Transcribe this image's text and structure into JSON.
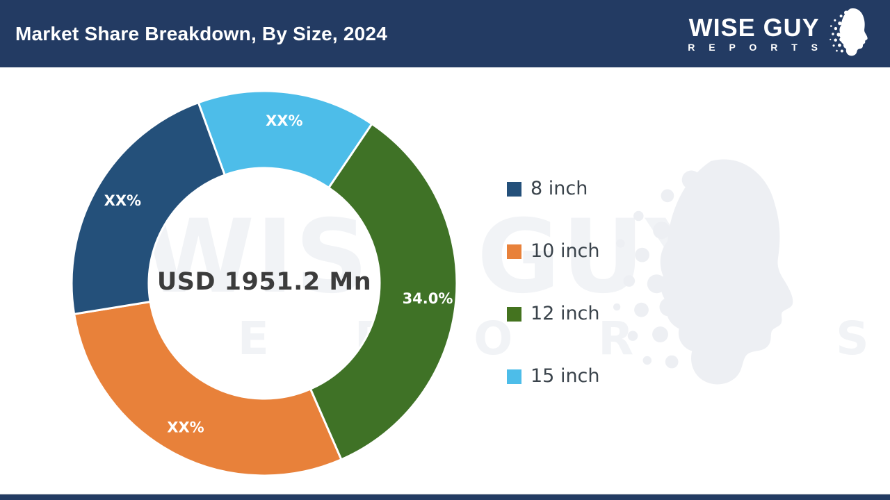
{
  "header": {
    "title": "Market Share Breakdown, By Size, 2024",
    "logo": {
      "name": "WISE GUY",
      "subtitle": "R E P O R T S"
    }
  },
  "watermark": {
    "line1": "WISE GUY",
    "line2": "R E P O R T S"
  },
  "chart_data": {
    "type": "pie",
    "subtype": "donut",
    "title": "Market Share Breakdown, By Size, 2024",
    "center_label": "USD 1951.2 Mn",
    "start_angle_deg": 340,
    "direction": "clockwise",
    "inner_radius_ratio": 0.6,
    "slices": [
      {
        "label": "15 inch",
        "value": 15,
        "display": "XX%",
        "color": "#4dbde9"
      },
      {
        "label": "12 inch",
        "value": 34,
        "display": "34.0%",
        "color": "#3f7226"
      },
      {
        "label": "10 inch",
        "value": 29,
        "display": "XX%",
        "color": "#e8813a"
      },
      {
        "label": "8 inch",
        "value": 22,
        "display": "XX%",
        "color": "#24507a"
      }
    ]
  },
  "legend": {
    "items": [
      {
        "label": "8 inch",
        "color": "#24507a"
      },
      {
        "label": "10 inch",
        "color": "#e8813a"
      },
      {
        "label": "12 inch",
        "color": "#44731f"
      },
      {
        "label": "15 inch",
        "color": "#4dbde9"
      }
    ]
  },
  "colors": {
    "header_bg": "#233b63",
    "footer_bg": "#233b63",
    "center_text": "#3c3c3c",
    "watermark": "#f1f3f6"
  }
}
